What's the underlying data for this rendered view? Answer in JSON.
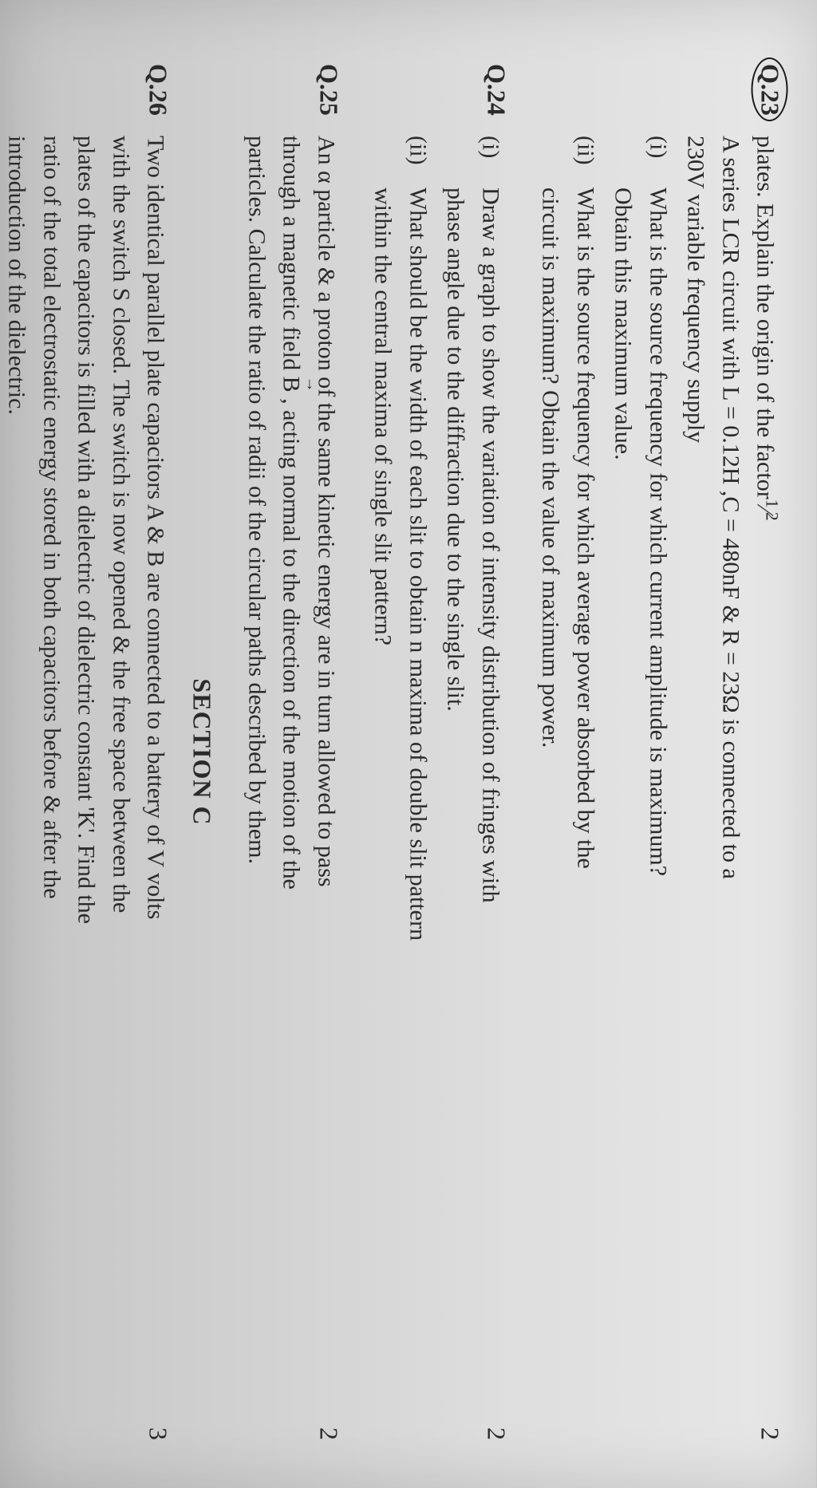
{
  "questions": {
    "q23": {
      "number": "Q.23",
      "intro_line": "plates. Explain the origin of the factor",
      "frac_num": "1",
      "frac_den": "2",
      "line1_part1": "A series LCR circuit with L = 0.12H ,C = 480nF & R = 23Ω is connected to a",
      "line2": "230V variable frequency supply",
      "sub_i_label": "(i)",
      "sub_i_line1": "What is the source frequency for which current amplitude is maximum?",
      "sub_i_line2": "Obtain this maximum value.",
      "sub_ii_label": "(ii)",
      "sub_ii_line1": "What is the source frequency for which average power absorbed by the",
      "sub_ii_line2": "circuit is maximum? Obtain the value of maximum power.",
      "marks": "2"
    },
    "q24": {
      "number": "Q.24",
      "sub_i_label": "(i)",
      "sub_i_line1": "Draw a graph to show the variation of intensity distribution of fringes with",
      "sub_i_line2": "phase angle due to the diffraction due to the single slit.",
      "sub_ii_label": "(ii)",
      "sub_ii_line1": "What should be the width of each slit to obtain n maxima of double slit pattern",
      "sub_ii_line2": "within the central maxima of single slit pattern?",
      "marks": "2"
    },
    "q25": {
      "number": "Q.25",
      "line1": "An α particle & a proton of the same kinetic energy are in turn allowed to pass",
      "line2_pre": "through a magnetic field",
      "line2_vec": "B",
      "line2_post": ", acting normal to the direction of the motion of the",
      "line3": "particles. Calculate the ratio of radii of the circular paths described by them.",
      "marks": "2"
    },
    "section_c": "SECTION C",
    "q26": {
      "number": "Q.26",
      "line1": "Two identical parallel plate capacitors A & B are connected to a battery of V volts",
      "line2": "with the switch S closed. The switch is now opened & the free space between the",
      "line3": "plates of the capacitors is filled with a dielectric of dielectric constant 'K'. Find the",
      "line4": "ratio of the total electrostatic energy stored in both capacitors before & after the",
      "line5": "introduction of the dielectric.",
      "marks": "3"
    }
  }
}
